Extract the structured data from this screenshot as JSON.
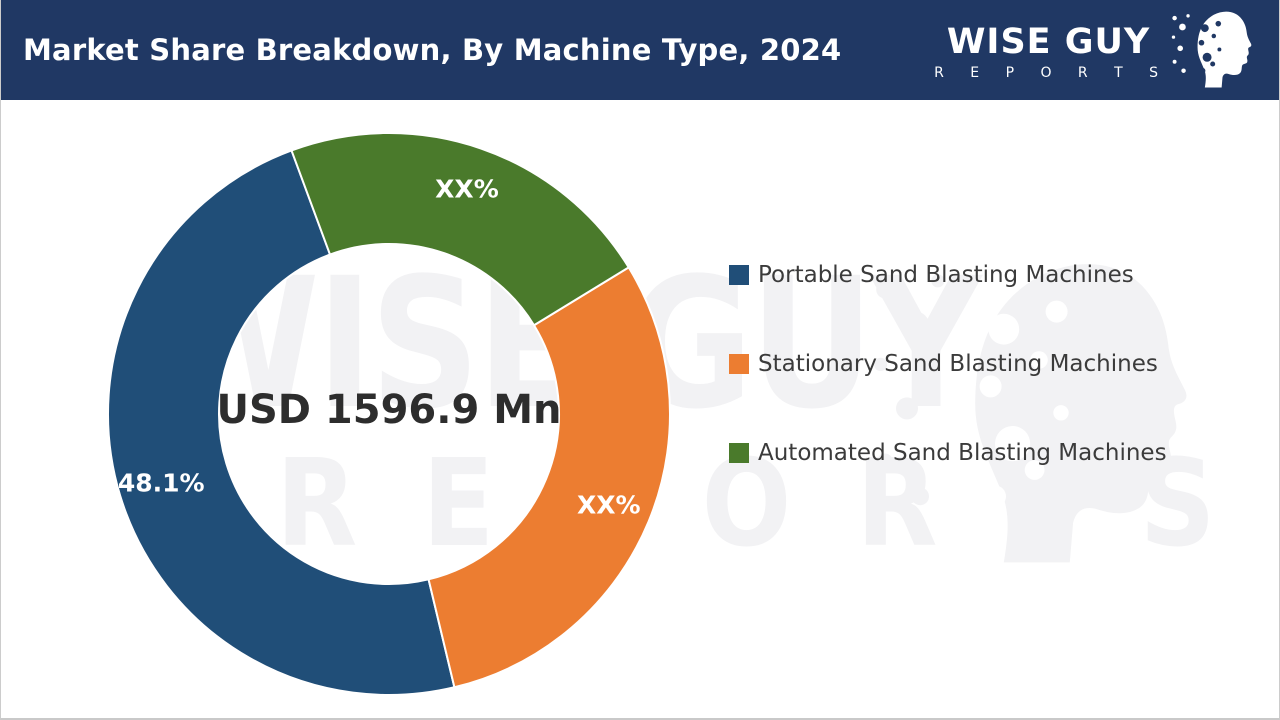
{
  "header": {
    "title": "Market Share Breakdown, By Machine Type, 2024",
    "bg_color": "#203864",
    "logo": {
      "line1": "WISE GUY",
      "line2": "R E P O R T S"
    }
  },
  "watermark": {
    "line1": "WISE GUY",
    "line2": "R E P O R T S"
  },
  "chart_data": {
    "type": "pie",
    "subtype": "donut",
    "title": "Market Share Breakdown, By Machine Type, 2024",
    "center_label": "USD 1596.9 Mn",
    "start_angle_deg": 110.3,
    "direction": "counterclockwise",
    "legend_position": "right",
    "series": [
      {
        "name": "Portable Sand Blasting Machines",
        "value_pct": 48.1,
        "label": "48.1%",
        "color": "#204E78"
      },
      {
        "name": "Stationary Sand Blasting Machines",
        "value_pct": 30.0,
        "label": "XX%",
        "color": "#EC7D31"
      },
      {
        "name": "Automated Sand Blasting Machines",
        "value_pct": 21.9,
        "label": "XX%",
        "color": "#4A7A2B"
      }
    ]
  },
  "legend": {
    "items": [
      {
        "label": "Portable Sand Blasting Machines",
        "color": "#204E78"
      },
      {
        "label": "Stationary Sand Blasting Machines",
        "color": "#EC7D31"
      },
      {
        "label": "Automated Sand Blasting Machines",
        "color": "#4A7A2B"
      }
    ]
  },
  "colors": {
    "header_bg": "#203864",
    "center_text": "#2d2d2d",
    "legend_text": "#3b3b3b",
    "watermark": "#f2f2f4"
  }
}
